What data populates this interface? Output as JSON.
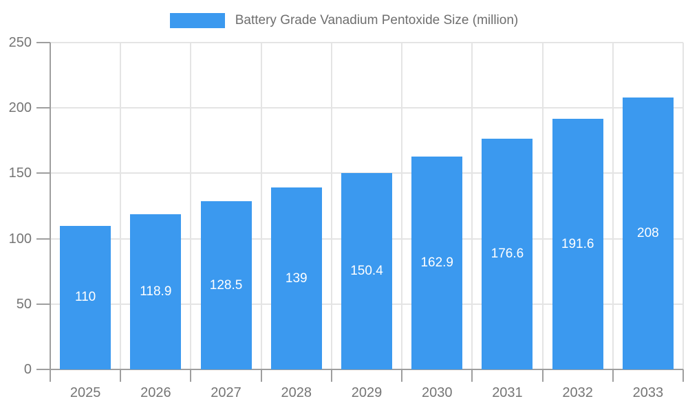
{
  "chart_data": {
    "type": "bar",
    "title": "Battery Grade Vanadium Pentoxide Size (million)",
    "categories": [
      "2025",
      "2026",
      "2027",
      "2028",
      "2029",
      "2030",
      "2031",
      "2032",
      "2033"
    ],
    "series": [
      {
        "name": "Battery Grade Vanadium Pentoxide Size (million)",
        "values": [
          110,
          118.9,
          128.5,
          139,
          150.4,
          162.9,
          176.6,
          191.6,
          208
        ],
        "value_labels": [
          "110",
          "118.9",
          "128.5",
          "139",
          "150.4",
          "162.9",
          "176.6",
          "191.6",
          "208"
        ]
      }
    ],
    "xlabel": "",
    "ylabel": "",
    "ylim": [
      0,
      250
    ],
    "yticks": [
      0,
      50,
      100,
      150,
      200,
      250
    ],
    "ytick_labels": [
      "0",
      "50",
      "100",
      "150",
      "200",
      "250"
    ],
    "grid": true,
    "legend_position": "top",
    "colors": {
      "bar": "#3b99ef",
      "bar_value_text": "#ffffff",
      "axis_text": "#757575",
      "legend_text": "#6e6e6e",
      "axis_line": "#9e9e9e",
      "gridline": "#e4e4e4",
      "background": "#ffffff"
    }
  }
}
